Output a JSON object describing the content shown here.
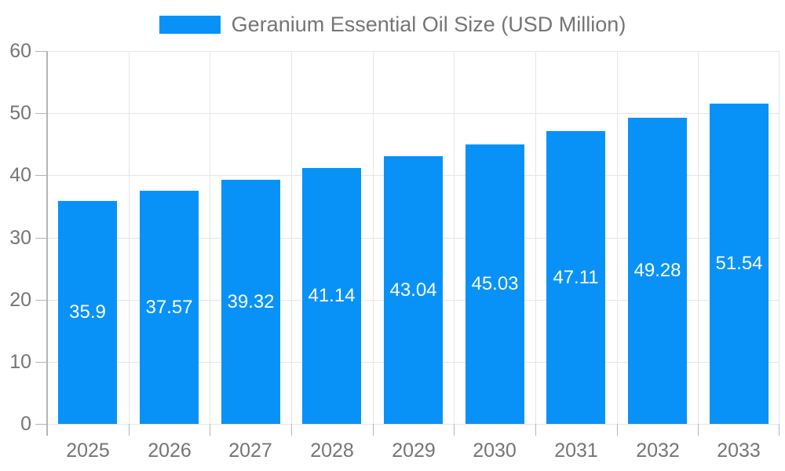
{
  "chart_data": {
    "type": "bar",
    "title": "Geranium Essential Oil Size (USD Million)",
    "legend": {
      "label": "Geranium Essential Oil Size (USD Million)",
      "position": "top"
    },
    "categories": [
      "2025",
      "2026",
      "2027",
      "2028",
      "2029",
      "2030",
      "2031",
      "2032",
      "2033"
    ],
    "series": [
      {
        "name": "Geranium Essential Oil Size (USD Million)",
        "values": [
          35.9,
          37.57,
          39.32,
          41.14,
          43.04,
          45.03,
          47.11,
          49.28,
          51.54
        ]
      }
    ],
    "value_labels": [
      "35.9",
      "37.57",
      "39.32",
      "41.14",
      "43.04",
      "45.03",
      "47.11",
      "49.28",
      "51.54"
    ],
    "xlabel": "",
    "ylabel": "",
    "ylim": [
      0,
      60
    ],
    "yticks": [
      0,
      10,
      20,
      30,
      40,
      50,
      60
    ],
    "grid": true,
    "colors": {
      "bar": "#0892F8",
      "grid": "#e6e6e6",
      "axis": "#b5b5b5",
      "text": "#757575",
      "bar_label": "#ffffff",
      "background": "#ffffff"
    }
  }
}
